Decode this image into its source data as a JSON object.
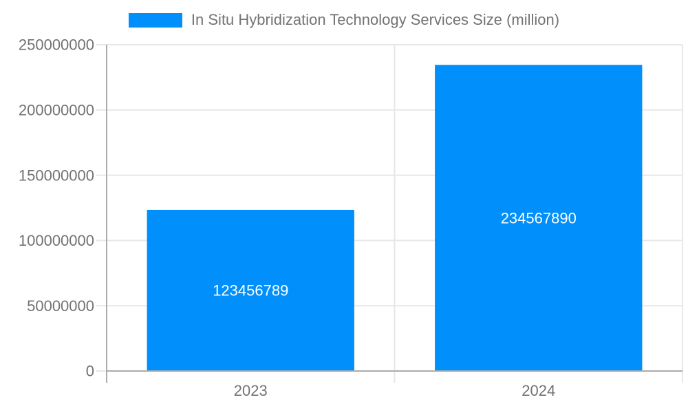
{
  "legend": {
    "label": "In Situ Hybridization Technology Services Size (million)"
  },
  "colors": {
    "bar": "#008FFB",
    "grid_line": "#E7E7E7",
    "axis_line": "#ABABAB",
    "tick_label": "#737373",
    "data_label": "#FFFFFF",
    "background": "#FFFFFF"
  },
  "chart_data": {
    "type": "bar",
    "title": "In Situ Hybridization Technology Services Size (million)",
    "categories": [
      "2023",
      "2024"
    ],
    "series": [
      {
        "name": "In Situ Hybridization Technology Services Size (million)",
        "values": [
          123456789,
          234567890
        ],
        "data_labels": [
          "123456789",
          "234567890"
        ]
      }
    ],
    "xlabel": "",
    "ylabel": "",
    "ylim": [
      0,
      250000000
    ],
    "ytick_interval": 50000000,
    "yticks": [
      0,
      50000000,
      100000000,
      150000000,
      200000000,
      250000000
    ],
    "ytick_labels": [
      "0",
      "50000000",
      "100000000",
      "150000000",
      "200000000",
      "250000000"
    ],
    "grid": true,
    "legend_position": "top-center"
  }
}
